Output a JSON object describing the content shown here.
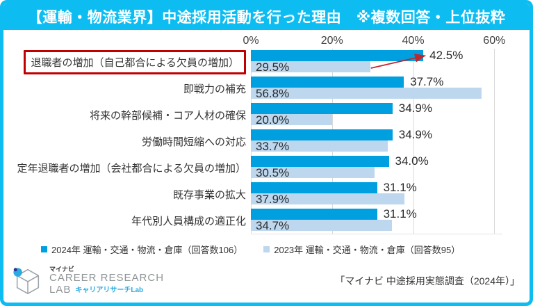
{
  "header": {
    "title": "【運輸・物流業界】中途採用活動を行った理由　※複数回答・上位抜粋"
  },
  "chart_data": {
    "type": "bar",
    "orientation": "horizontal",
    "title": "【運輸・物流業界】中途採用活動を行った理由　※複数回答・上位抜粋",
    "categories": [
      "退職者の増加（自己都合による欠員の増加）",
      "即戦力の補充",
      "将来の幹部候補・コア人材の確保",
      "労働時間短縮への対応",
      "定年退職者の増加（会社都合による欠員の増加）",
      "既存事業の拡大",
      "年代別人員構成の適正化"
    ],
    "series": [
      {
        "name": "2024年 運輸・交通・物流・倉庫（回答数106）",
        "color": "#00A0E0",
        "values": [
          42.5,
          37.7,
          34.9,
          34.9,
          34.0,
          31.1,
          31.1
        ]
      },
      {
        "name": "2023年 運輸・交通・物流・倉庫（回答数95）",
        "color": "#BDD7EE",
        "values": [
          29.5,
          56.8,
          20.0,
          33.7,
          30.5,
          37.9,
          34.7
        ]
      }
    ],
    "x_axis": {
      "ticks": [
        {
          "value": 0,
          "label": "0%"
        },
        {
          "value": 20,
          "label": "20%"
        },
        {
          "value": 40,
          "label": "40%"
        },
        {
          "value": 60,
          "label": "60%"
        }
      ],
      "max": 62
    },
    "grid": true,
    "legend_position": "bottom",
    "annotations": {
      "highlighted_category_index": 0,
      "highlight_box_color": "#C00000",
      "trend_arrow": {
        "row": 0,
        "from_value": 29.5,
        "to_value": 42.5,
        "color": "#C0272D"
      }
    }
  },
  "legend": {
    "items": [
      {
        "label": "2024年 運輸・交通・物流・倉庫（回答数106）",
        "color": "#00A0E0"
      },
      {
        "label": "2023年 運輸・交通・物流・倉庫（回答数95）",
        "color": "#BDD7EE"
      }
    ]
  },
  "footer": {
    "logo": {
      "brand_small": "マイナビ",
      "line1": "CAREER RESEARCH",
      "line2": "LAB",
      "line2_jp": "キャリアリサーチLab"
    },
    "source": "「マイナビ 中途採用実態調査（2024年）」"
  },
  "colors": {
    "accent": "#0DBDF2",
    "bar_2024": "#00A0E0",
    "bar_2023": "#BDD7EE",
    "grid": "#D9D9D9",
    "highlight_red": "#C00000",
    "arrow_red": "#C0272D"
  }
}
